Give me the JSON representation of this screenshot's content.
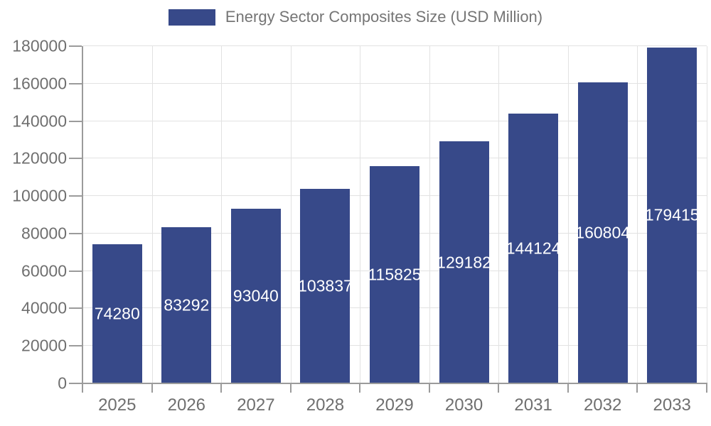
{
  "chart_data": {
    "type": "bar",
    "title": "Energy Sector Composites Size (USD Million)",
    "legend": {
      "position": "top-center",
      "entries": [
        "Energy Sector Composites Size (USD Million)"
      ]
    },
    "categories": [
      "2025",
      "2026",
      "2027",
      "2028",
      "2029",
      "2030",
      "2031",
      "2032",
      "2033"
    ],
    "values": [
      74280,
      83292,
      93040,
      103837,
      115825,
      129182,
      144124,
      160804,
      179415
    ],
    "xlabel": "",
    "ylabel": "",
    "ylim": [
      0,
      180000
    ],
    "y_ticks": [
      0,
      20000,
      40000,
      60000,
      80000,
      100000,
      120000,
      140000,
      160000,
      180000
    ],
    "grid": true,
    "bar_value_labels": {
      "position": "inside-center",
      "color": "#ffffff"
    },
    "colors": {
      "bar": "#374989",
      "axis_text": "#6f6f6f",
      "legend_text": "#757575",
      "gridline": "#e2e2e2",
      "axis_line": "#9b9b9b",
      "background": "#ffffff"
    }
  }
}
